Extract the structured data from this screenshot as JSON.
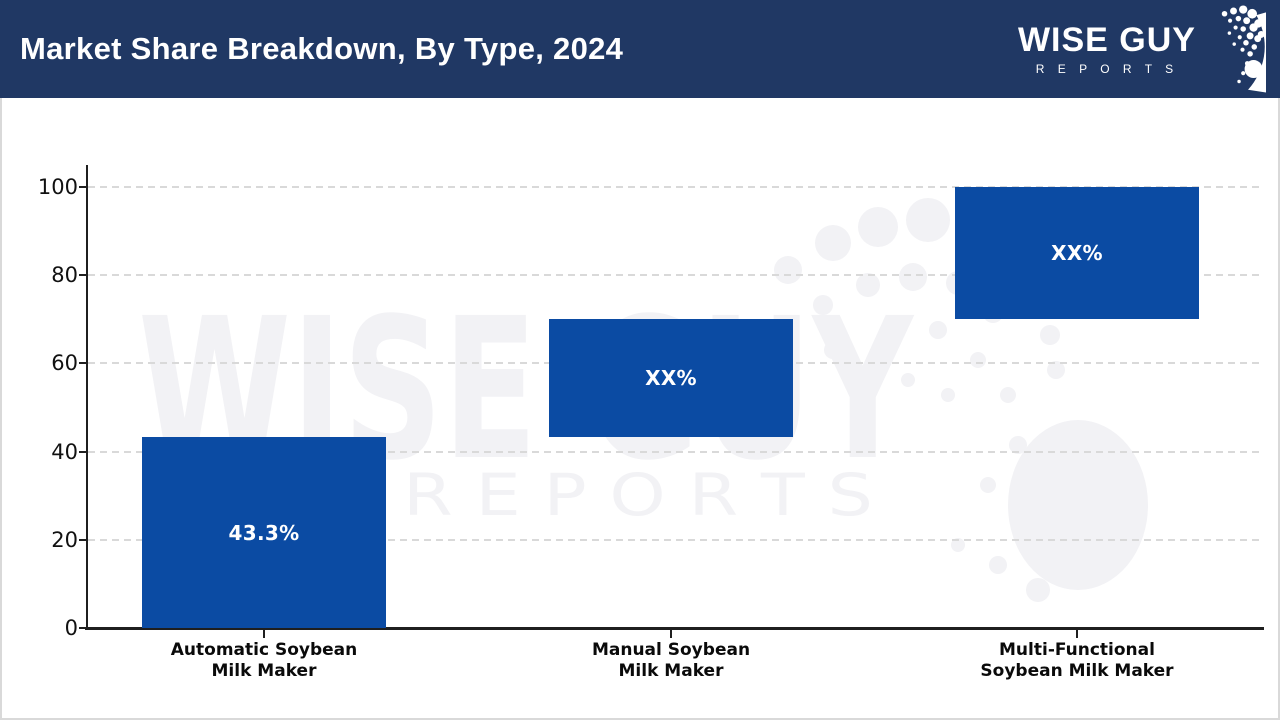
{
  "header": {
    "title": "Market Share Breakdown, By Type, 2024",
    "bg_color": "#203864",
    "logo": {
      "line1": "WISE GUY",
      "line2": "R E P O R T S"
    }
  },
  "watermark": {
    "line1": "WISE GUY",
    "line2": "R E P O R T S"
  },
  "chart_data": {
    "type": "bar",
    "subtype": "stacked-waterfall",
    "title": "Market Share Breakdown, By Type, 2024",
    "xlabel": "",
    "ylabel": "",
    "ylim": [
      0,
      100
    ],
    "yticks": [
      0,
      20,
      40,
      60,
      80,
      100
    ],
    "grid": "horizontal-dashed",
    "legend": "none",
    "bar_color": "#0b4ba3",
    "bar_label_color": "#ffffff",
    "categories": [
      "Automatic Soybean\nMilk Maker",
      "Manual Soybean\nMilk Maker",
      "Multi-Functional\nSoybean Milk Maker"
    ],
    "segments": [
      {
        "category": "Automatic Soybean Milk Maker",
        "label": "43.3%",
        "start": 0,
        "end": 43.3
      },
      {
        "category": "Manual Soybean Milk Maker",
        "label": "XX%",
        "start": 43.3,
        "end": 70
      },
      {
        "category": "Multi-Functional Soybean Milk Maker",
        "label": "XX%",
        "start": 70,
        "end": 100
      }
    ]
  }
}
